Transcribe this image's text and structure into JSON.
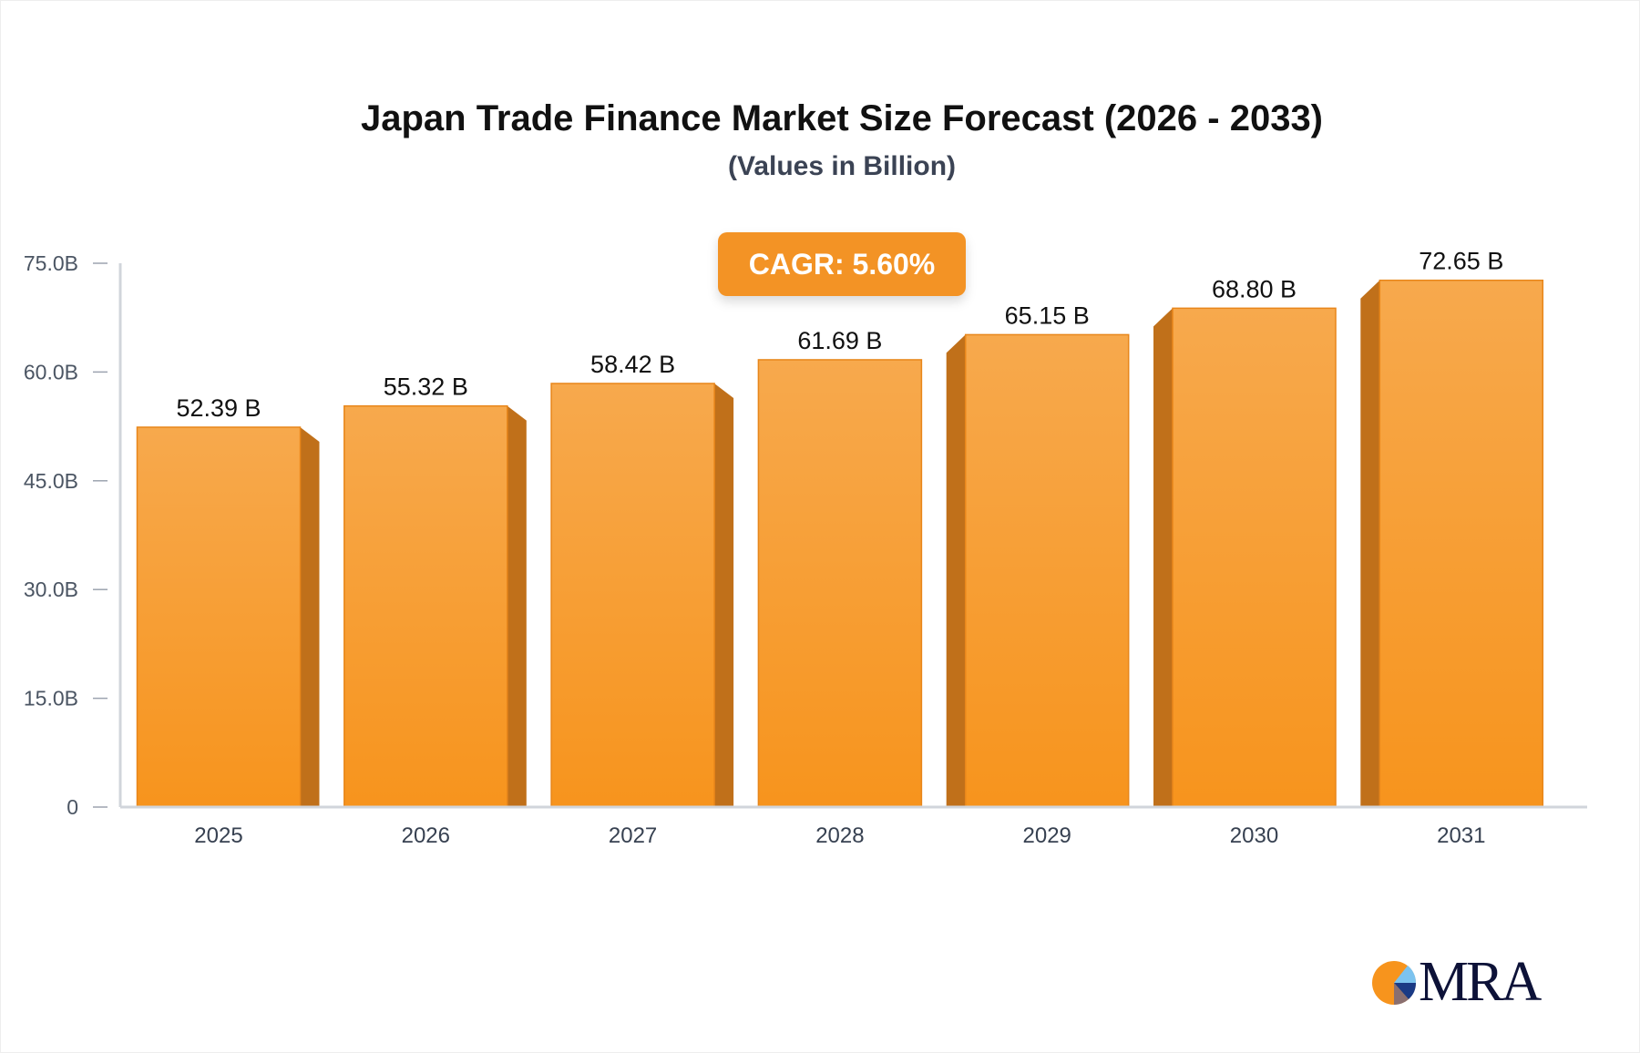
{
  "chart_data": {
    "type": "bar",
    "title": "Japan Trade Finance Market Size Forecast (2026 - 2033)",
    "subtitle": "(Values in Billion)",
    "annotation": "CAGR: 5.60%",
    "categories": [
      "2025",
      "2026",
      "2027",
      "2028",
      "2029",
      "2030",
      "2031"
    ],
    "values": [
      52.39,
      55.32,
      58.42,
      61.69,
      65.15,
      68.8,
      72.65
    ],
    "value_labels": [
      "52.39 B",
      "55.32 B",
      "58.42 B",
      "61.69 B",
      "65.15 B",
      "68.80 B",
      "72.65 B"
    ],
    "xlabel": "",
    "ylabel": "",
    "ylim": [
      0,
      75
    ],
    "yticks": [
      0,
      15,
      30,
      45,
      60,
      75
    ],
    "ytick_labels": [
      "0",
      "15.0B",
      "30.0B",
      "45.0B",
      "60.0B",
      "75.0B"
    ],
    "grid": false,
    "colors": {
      "bar": "#f7941d",
      "bar_top": "#f7a94d",
      "bar_side": "#c0701a",
      "annotation_bg": "#f39325"
    }
  },
  "logo": {
    "text": "MRA"
  }
}
